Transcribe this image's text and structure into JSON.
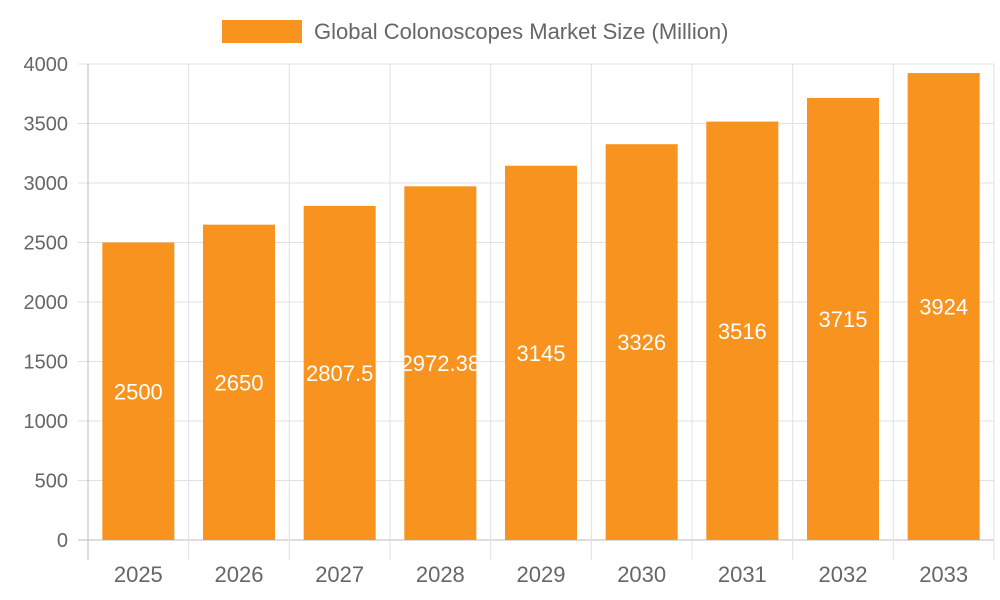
{
  "chart_data": {
    "type": "bar",
    "title": "",
    "xlabel": "",
    "ylabel": "",
    "categories": [
      "2025",
      "2026",
      "2027",
      "2028",
      "2029",
      "2030",
      "2031",
      "2032",
      "2033"
    ],
    "series": [
      {
        "name": "Global Colonoscopes Market Size (Million)",
        "values": [
          2500,
          2650,
          2807.5,
          2972.38,
          3145,
          3326,
          3516,
          3715,
          3924
        ],
        "color": "#F7931E"
      }
    ],
    "ylim": [
      0,
      4000
    ],
    "yticks": [
      0,
      500,
      1000,
      1500,
      2000,
      2500,
      3000,
      3500,
      4000
    ],
    "grid": true,
    "legend": "top",
    "data_labels": true
  }
}
